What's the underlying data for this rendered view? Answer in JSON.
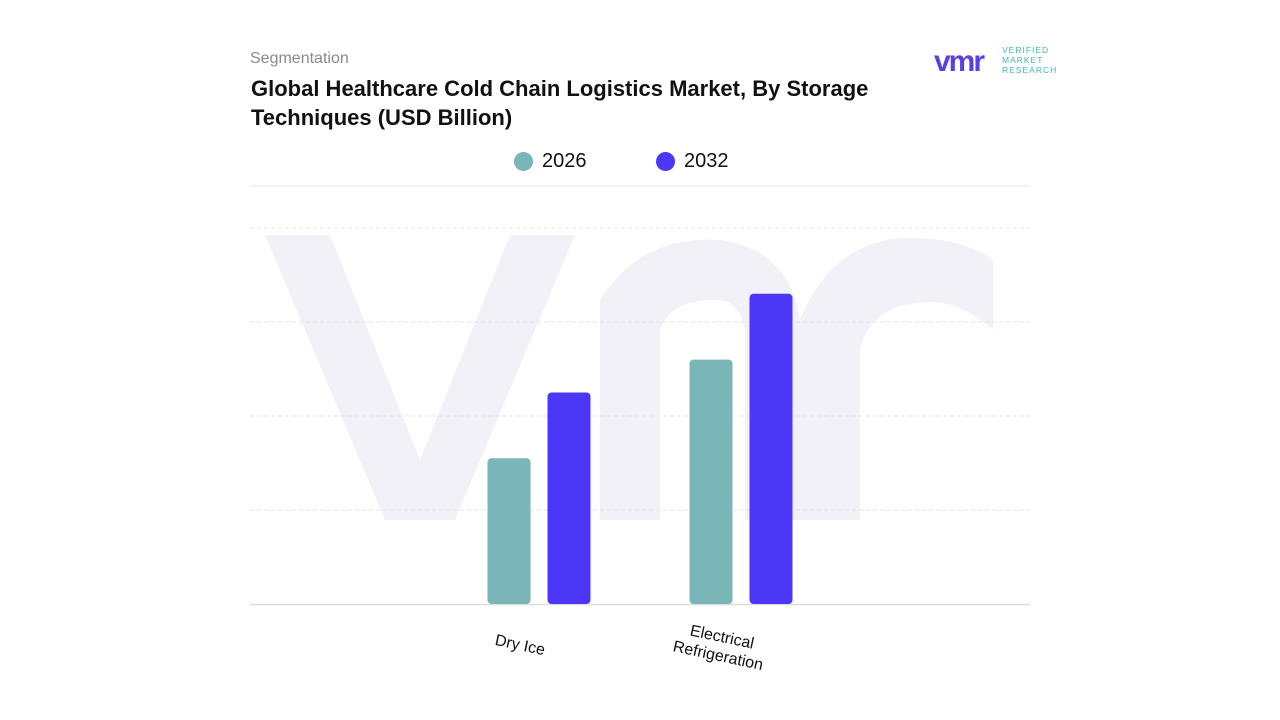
{
  "header": {
    "subtitle": "Segmentation",
    "title": "Global Healthcare Cold Chain Logistics Market, By Storage Techniques (USD Billion)"
  },
  "logo": {
    "line1": "VERIFIED",
    "line2": "MARKET",
    "line3": "RESEARCH",
    "mark": "vmr",
    "color": "#5b3fe0",
    "text_color": "#3fb8b0"
  },
  "chart_data": {
    "type": "bar",
    "categories": [
      "Dry Ice",
      "Electrical Refrigeration"
    ],
    "category_lines": [
      [
        "Dry Ice"
      ],
      [
        "Electrical",
        "Refrigeration"
      ]
    ],
    "series": [
      {
        "name": "2026",
        "values": [
          1.55,
          2.6
        ],
        "color": "#7ab5b8"
      },
      {
        "name": "2032",
        "values": [
          2.25,
          3.3
        ],
        "color": "#4b37f5"
      }
    ],
    "ylim": [
      0,
      4
    ],
    "grid": true,
    "legend": "top-center",
    "xlabel": "",
    "ylabel": ""
  }
}
